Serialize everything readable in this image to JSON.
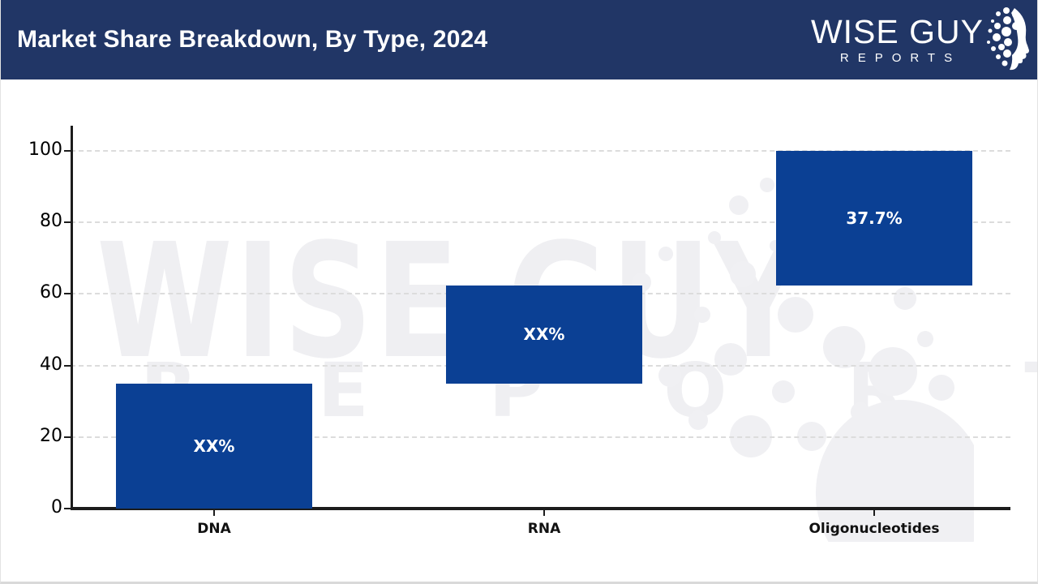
{
  "header": {
    "title": "Market Share Breakdown, By Type, 2024",
    "logo": {
      "line1": "WISE GUY",
      "line2": "REPORTS"
    }
  },
  "watermark": {
    "line1": "WISE GUY",
    "line2": "R E P O R T S"
  },
  "chart_data": {
    "type": "bar",
    "subtype": "floating-waterfall-bars",
    "title": "Market Share Breakdown, By Type, 2024",
    "categories": [
      "DNA",
      "RNA",
      "Oligonucleotides"
    ],
    "series": [
      {
        "name": "Market Share",
        "segments": [
          {
            "category": "DNA",
            "start": 0,
            "end": 35,
            "label": "XX%"
          },
          {
            "category": "RNA",
            "start": 35,
            "end": 62.3,
            "label": "XX%"
          },
          {
            "category": "Oligonucleotides",
            "start": 62.3,
            "end": 100,
            "label": "37.7%"
          }
        ]
      }
    ],
    "xlabel": "",
    "ylabel": "",
    "ylim": [
      0,
      100
    ],
    "yticks": [
      0,
      20,
      40,
      60,
      80,
      100
    ],
    "grid": "horizontal-dashed",
    "legend": null,
    "bar_color": "#0b4094",
    "bar_label_color": "#ffffff"
  },
  "colors": {
    "header_bg": "#213666",
    "bar_blue": "#0b4094",
    "grid_gray": "#dcdcdc",
    "watermark_gray": "#efeff2",
    "axis_black": "#1c1c1c",
    "page_border": "#d9d9d9"
  }
}
